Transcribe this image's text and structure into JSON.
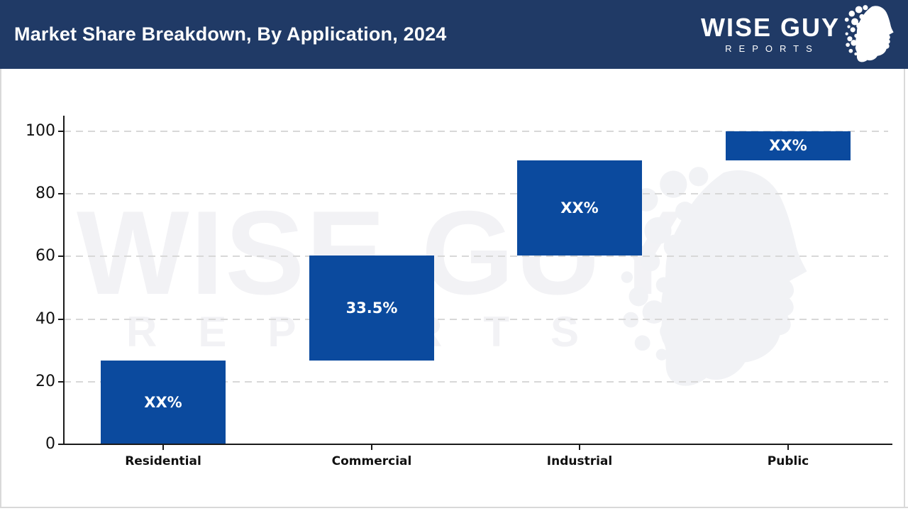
{
  "header": {
    "title": "Market Share Breakdown, By Application, 2024",
    "bg_color": "#203A66",
    "logo": {
      "line1": "WISE GUY",
      "line2": "REPORTS"
    }
  },
  "watermark": {
    "line1": "WISE GUY",
    "line2": "REPORTS"
  },
  "chart_data": {
    "type": "bar",
    "subtype": "waterfall",
    "title": "Market Share Breakdown, By Application, 2024",
    "categories": [
      "Residential",
      "Commercial",
      "Industrial",
      "Public"
    ],
    "segments": [
      {
        "category": "Residential",
        "start": 0,
        "end": 26.8,
        "value": 26.8,
        "label": "XX%"
      },
      {
        "category": "Commercial",
        "start": 26.8,
        "end": 60.3,
        "value": 33.5,
        "label": "33.5%"
      },
      {
        "category": "Industrial",
        "start": 60.3,
        "end": 90.8,
        "value": 30.5,
        "label": "XX%"
      },
      {
        "category": "Public",
        "start": 90.8,
        "end": 100,
        "value": 9.2,
        "label": "XX%"
      }
    ],
    "xlabel": "",
    "ylabel": "",
    "yticks": [
      0,
      20,
      40,
      60,
      80,
      100
    ],
    "ylim": [
      0,
      105
    ],
    "grid": "dashed-horizontal",
    "legend": "none",
    "bar_color": "#0B4A9E",
    "bar_label_color": "#FFFFFF",
    "grid_color": "#D8D8D8",
    "axis_color": "#1A1A1A"
  }
}
